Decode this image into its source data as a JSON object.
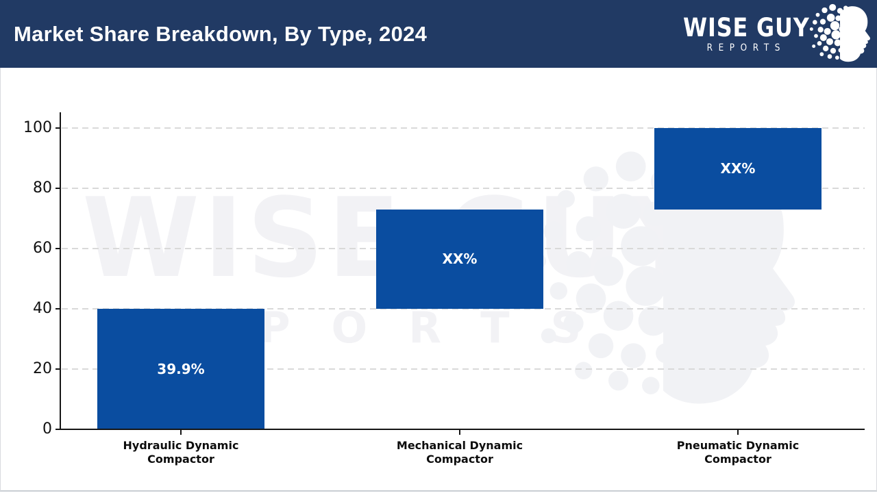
{
  "header": {
    "title": "Market Share Breakdown, By Type, 2024",
    "bg_color": "#213a64",
    "logo": {
      "primary": "WISE GUY",
      "secondary": "REPORTS"
    }
  },
  "watermark": {
    "primary": "WISE GUY",
    "secondary": "REPORTS"
  },
  "chart_data": {
    "type": "bar",
    "subtype": "floating-waterfall-segments",
    "title": "Market Share Breakdown, By Type, 2024",
    "categories": [
      "Hydraulic Dynamic Compactor",
      "Mechanical Dynamic Compactor",
      "Pneumatic Dynamic Compactor"
    ],
    "series": [
      {
        "name": "Hydraulic Dynamic Compactor",
        "range": [
          0,
          40
        ],
        "label": "39.9%"
      },
      {
        "name": "Mechanical Dynamic Compactor",
        "range": [
          40,
          73
        ],
        "label": "XX%"
      },
      {
        "name": "Pneumatic Dynamic Compactor",
        "range": [
          73,
          100
        ],
        "label": "XX%"
      }
    ],
    "xlabel": "",
    "ylabel": "",
    "ylim": [
      0,
      100
    ],
    "yticks": [
      0,
      20,
      40,
      60,
      80,
      100
    ],
    "grid": "horizontal-dashed",
    "legend": "none",
    "bar_color": "#0a4da0",
    "bar_label_color": "#ffffff",
    "axis_color": "#151515"
  }
}
